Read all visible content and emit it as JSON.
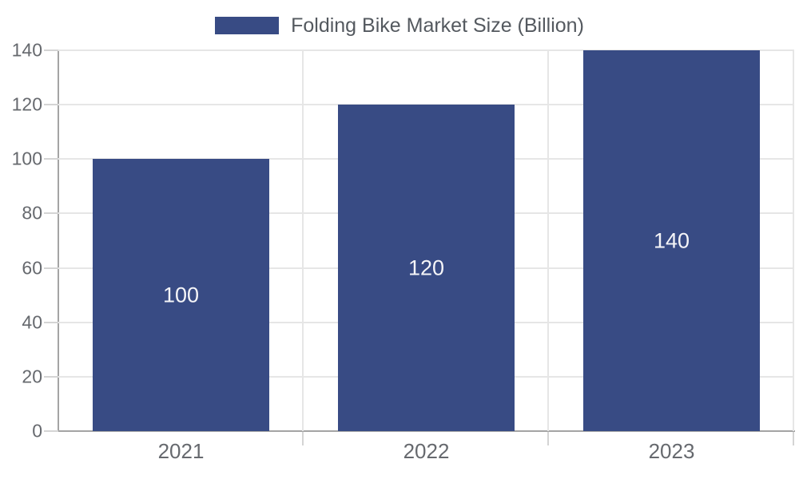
{
  "chart_data": {
    "type": "bar",
    "title": "Folding Bike Market Size (Billion)",
    "legend": {
      "position": "top",
      "label": "Folding Bike Market Size (Billion)"
    },
    "categories": [
      "2021",
      "2022",
      "2023"
    ],
    "series": [
      {
        "name": "Folding Bike Market Size (Billion)",
        "values": [
          100,
          120,
          140
        ],
        "color": "#384b84"
      }
    ],
    "data_labels": [
      "100",
      "120",
      "140"
    ],
    "xlabel": "",
    "ylabel": "",
    "ylim": [
      0,
      140
    ],
    "y_ticks": [
      0,
      20,
      40,
      60,
      80,
      100,
      120,
      140
    ],
    "y_tick_labels": [
      "0",
      "20",
      "40",
      "60",
      "80",
      "100",
      "120",
      "140"
    ],
    "grid": true,
    "legend_position": "top",
    "colors": {
      "bar": "#384b84",
      "background": "#ffffff",
      "gridline": "#e6e6e6",
      "axis_line": "#a4a4a4",
      "tick": "#d4d4d4",
      "axis_label_text": "#66696e",
      "legend_text": "#54595f",
      "data_label_text": "#f5f5f8"
    }
  }
}
